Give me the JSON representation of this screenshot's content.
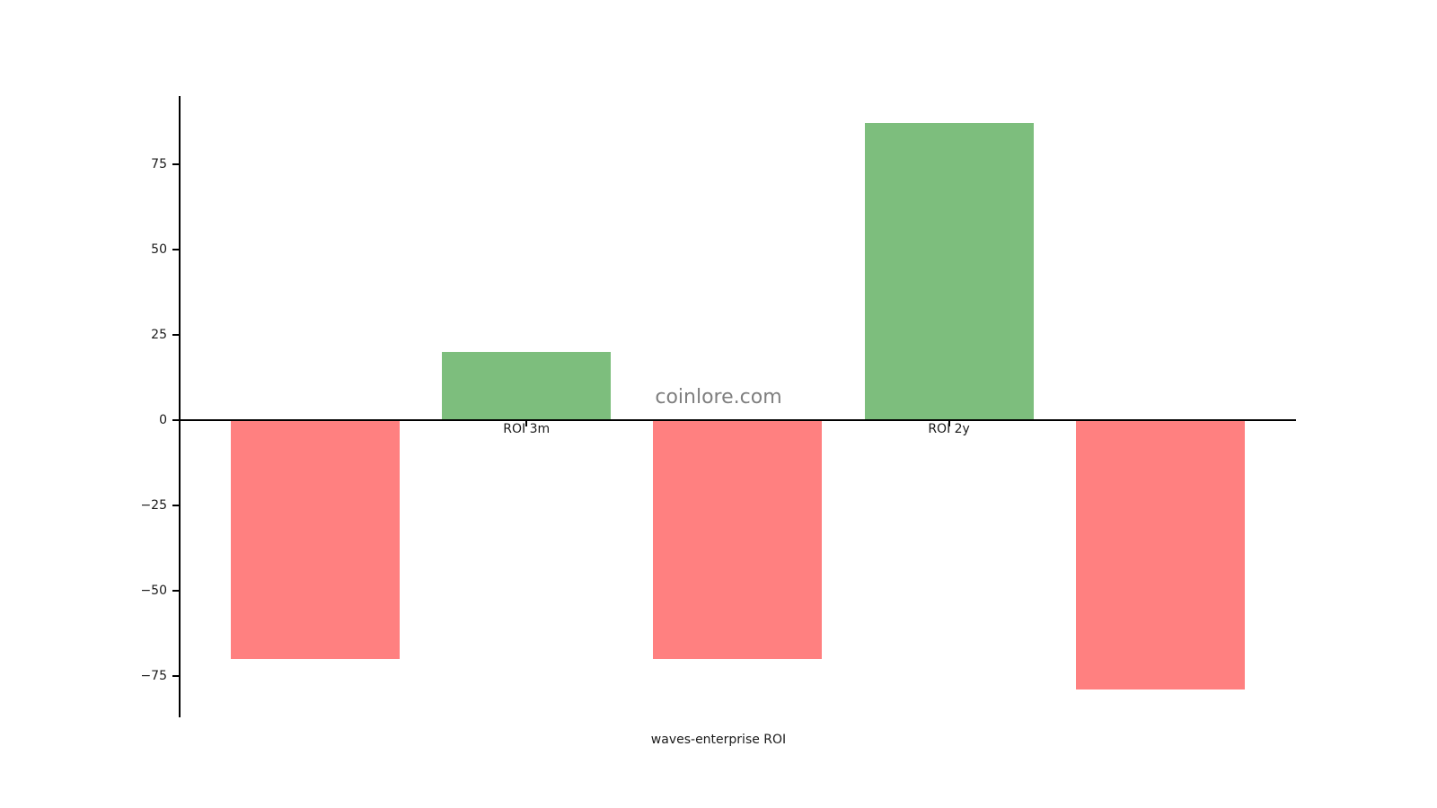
{
  "chart_data": {
    "type": "bar",
    "title": "waves-enterprise ROI",
    "watermark": "coinlore.com",
    "xlabel": "",
    "ylabel": "",
    "categories": [
      "",
      "ROI 3m",
      "",
      "ROI 2y",
      ""
    ],
    "values": [
      -70,
      20,
      -70,
      87,
      -79
    ],
    "yticks": [
      75,
      50,
      25,
      0,
      -25,
      -50,
      -75
    ],
    "ytick_labels": [
      "75",
      "50",
      "25",
      "0",
      "−25",
      "−50",
      "−75"
    ],
    "ylim": [
      -87,
      95
    ],
    "grid": false,
    "legend": "none",
    "colors": {
      "positive": "#7DBE7D",
      "negative": "#FF8080",
      "axis": "#000000",
      "text": "#1A1A1A",
      "watermark": "#7F7F7F"
    }
  }
}
